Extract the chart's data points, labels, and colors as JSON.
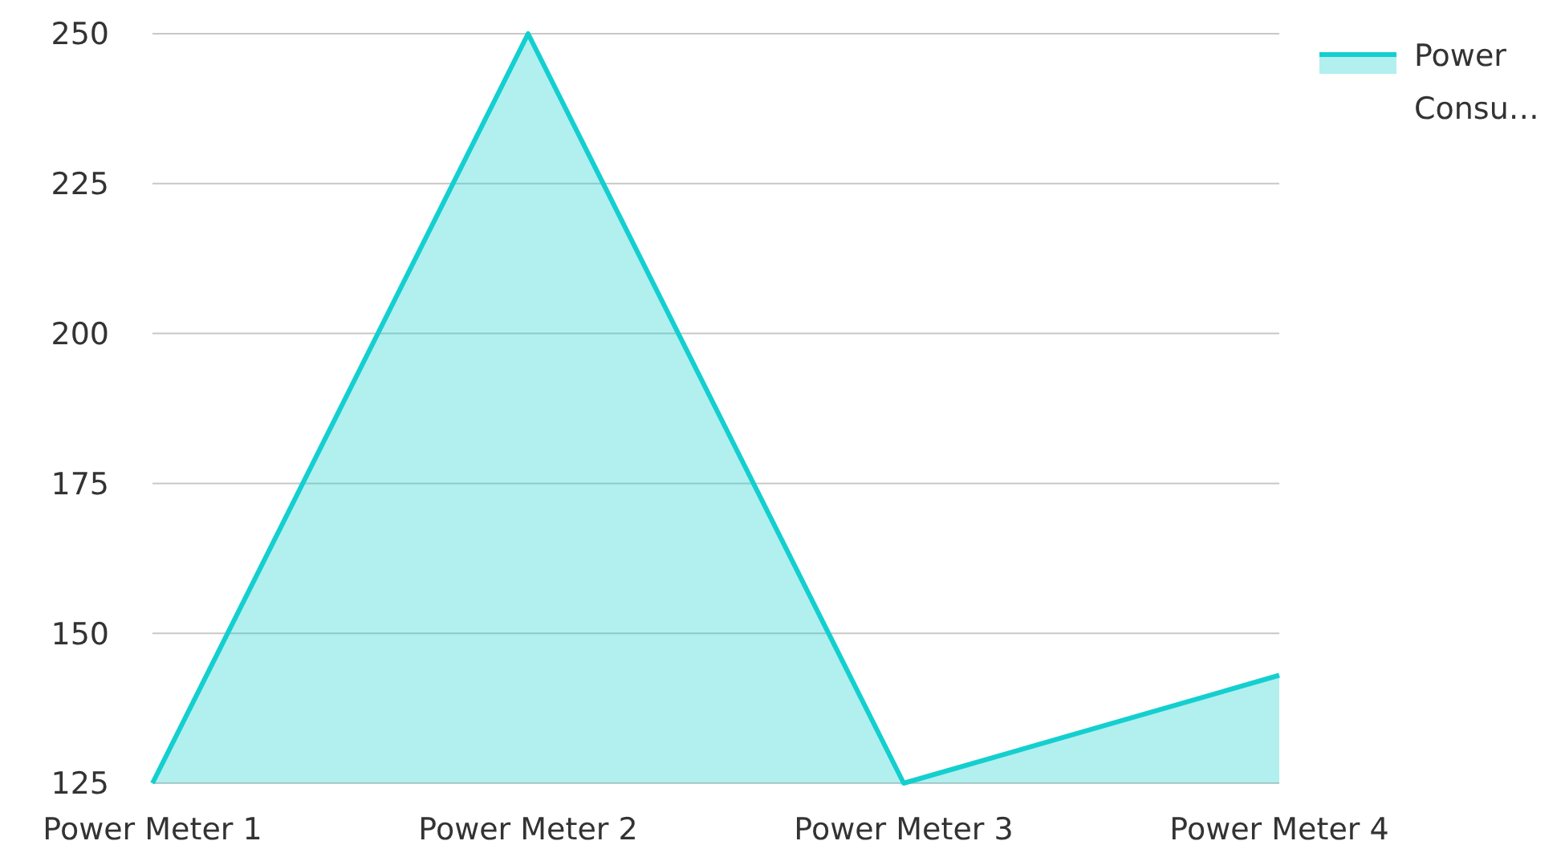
{
  "chart_data": {
    "type": "area",
    "categories": [
      "Power Meter 1",
      "Power Meter 2",
      "Power Meter 3",
      "Power Meter 4"
    ],
    "series": [
      {
        "name": "Power Consu…",
        "color": "#14cfcf",
        "values": [
          125,
          250,
          125,
          143
        ]
      }
    ],
    "ylim": [
      125,
      250
    ],
    "yticks": [
      125,
      150,
      175,
      200,
      225,
      250
    ],
    "grid": "y",
    "legend": "top right"
  }
}
